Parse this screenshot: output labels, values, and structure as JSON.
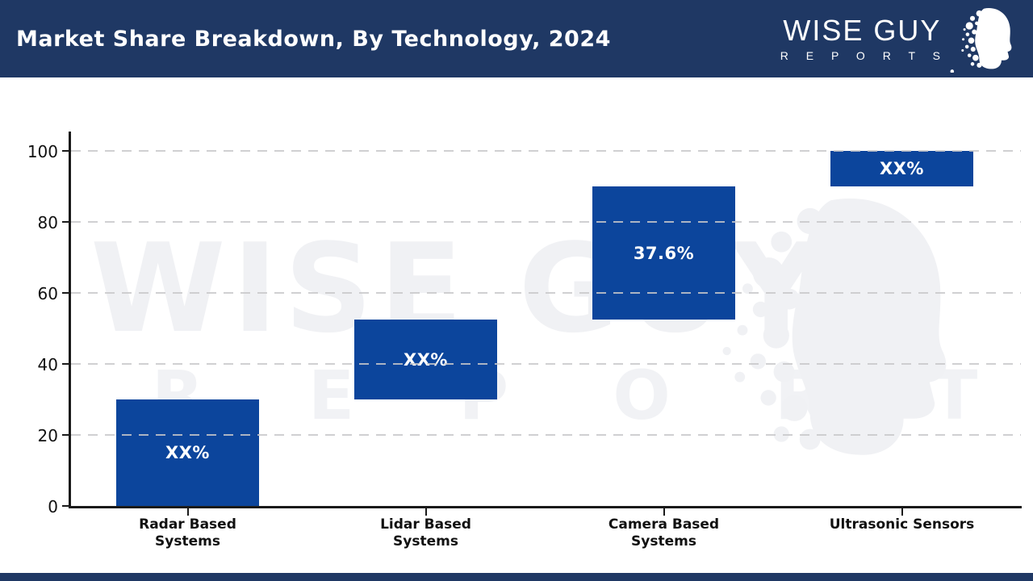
{
  "header": {
    "title": "Market Share Breakdown, By Technology, 2024",
    "bg_color": "#1f3864",
    "logo": {
      "line1": "WISE GUY",
      "line2": "R E P O R T S"
    }
  },
  "watermark": {
    "line1": "WISE GUY",
    "line2": "R E P O R T S"
  },
  "chart_data": {
    "type": "bar",
    "subtype": "floating-waterfall",
    "title": "Market Share Breakdown, By Technology, 2024",
    "categories": [
      "Radar Based Systems",
      "Lidar Based Systems",
      "Camera Based Systems",
      "Ultrasonic Sensors"
    ],
    "category_lines": [
      [
        "Radar Based",
        "Systems"
      ],
      [
        "Lidar Based",
        "Systems"
      ],
      [
        "Camera Based",
        "Systems"
      ],
      [
        "Ultrasonic Sensors"
      ]
    ],
    "segments": [
      {
        "category": "Radar Based Systems",
        "start": 0,
        "end": 30,
        "label": "XX%"
      },
      {
        "category": "Lidar Based Systems",
        "start": 30,
        "end": 52.4,
        "label": "XX%"
      },
      {
        "category": "Camera Based Systems",
        "start": 52.4,
        "end": 90,
        "label": "37.6%"
      },
      {
        "category": "Ultrasonic Sensors",
        "start": 90,
        "end": 100,
        "label": "XX%"
      }
    ],
    "xlabel": "",
    "ylabel": "",
    "ylim": [
      0,
      100
    ],
    "yticks": [
      0,
      20,
      40,
      60,
      80,
      100
    ],
    "grid": "horizontal-dashed",
    "legend": "none",
    "bar_color": "#0c459c",
    "bar_label_color": "#ffffff",
    "gridline_color": "#d9d9d9",
    "axis_color": "#1a1a1a"
  }
}
